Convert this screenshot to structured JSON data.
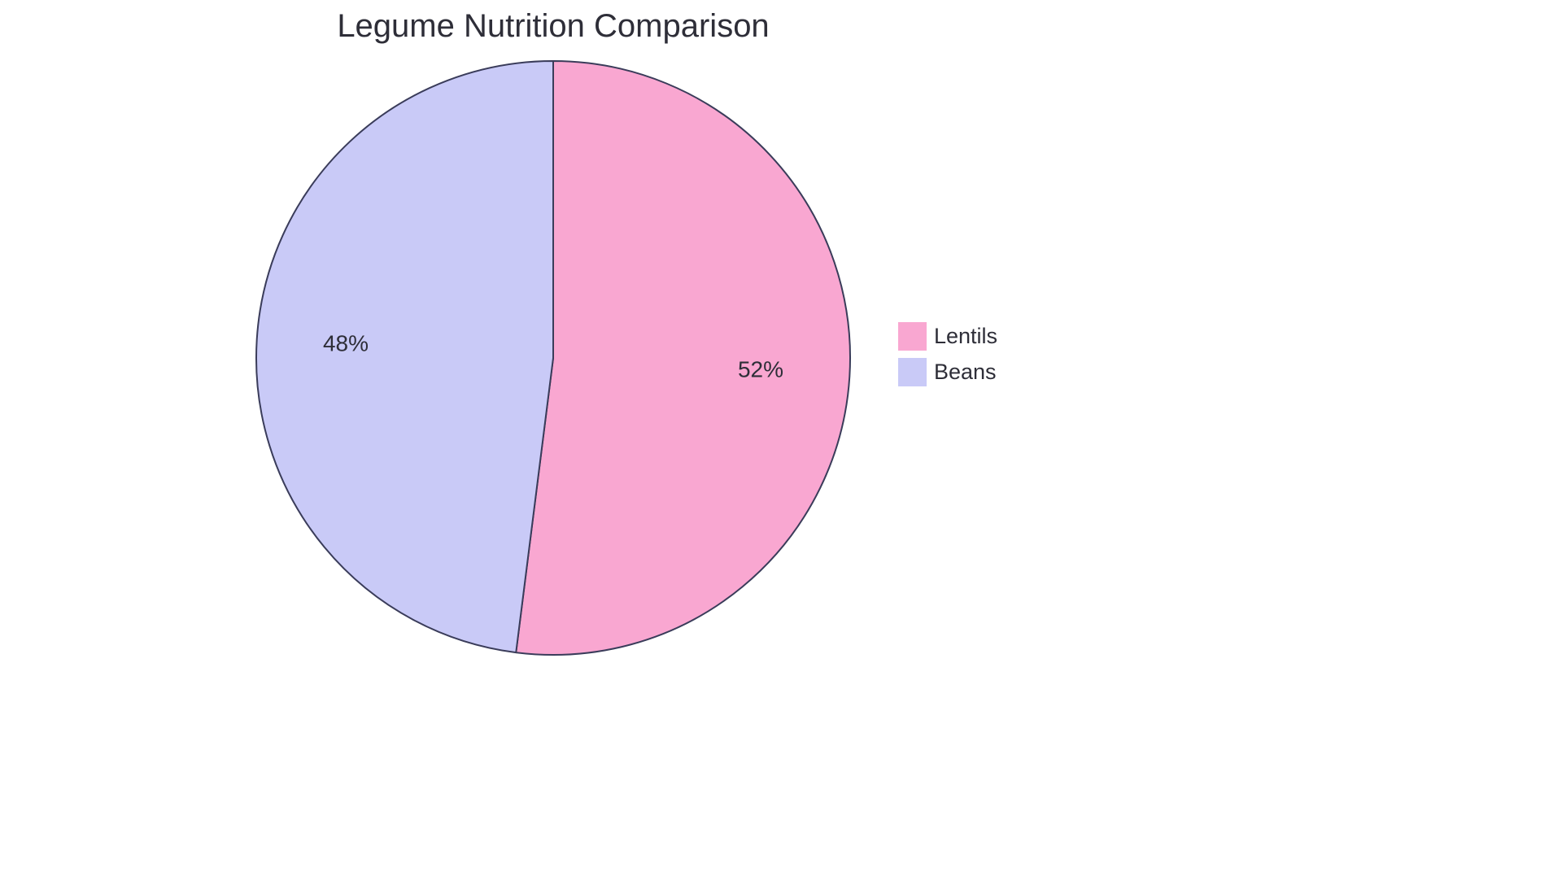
{
  "chart_data": {
    "type": "pie",
    "title": "Legume Nutrition Comparison",
    "labels": [
      "Lentils",
      "Beans"
    ],
    "values": [
      52,
      48
    ],
    "value_labels": [
      "52%",
      "48%"
    ],
    "colors": [
      "#F9A7D1",
      "#C9CAF7"
    ],
    "slice_border_color": "#3A3C5A",
    "start_angle_deg": 0,
    "direction": "clockwise",
    "legend_position": "right",
    "background": "#FFFFFF"
  },
  "legend": {
    "items": [
      {
        "label": "Lentils",
        "color": "#F9A7D1"
      },
      {
        "label": "Beans",
        "color": "#C9CAF7"
      }
    ]
  }
}
